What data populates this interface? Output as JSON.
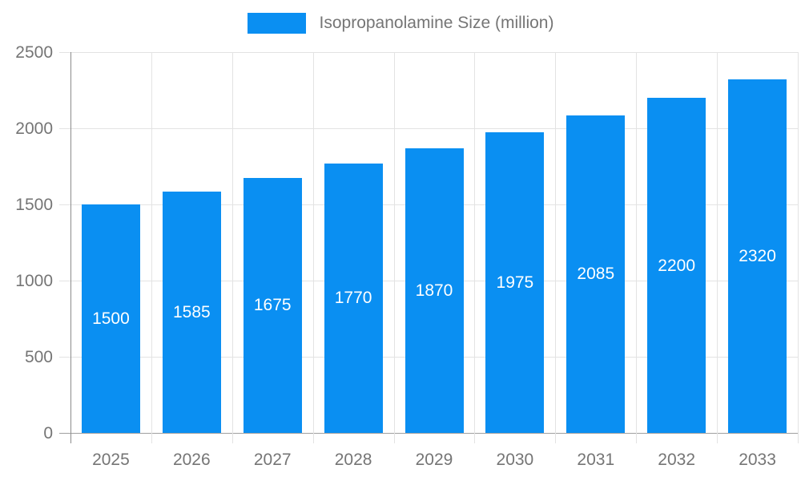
{
  "legend": {
    "label": "Isopropanolamine Size (million)"
  },
  "chart_data": {
    "type": "bar",
    "title": "Isopropanolamine Size (million)",
    "categories": [
      "2025",
      "2026",
      "2027",
      "2028",
      "2029",
      "2030",
      "2031",
      "2032",
      "2033"
    ],
    "values": [
      1500,
      1585,
      1675,
      1770,
      1870,
      1975,
      2085,
      2200,
      2320
    ],
    "xlabel": "",
    "ylabel": "",
    "ylim": [
      0,
      2500
    ],
    "yticks": [
      0,
      500,
      1000,
      1500,
      2000,
      2500
    ],
    "grid": true,
    "legend_position": "top",
    "bar_color": "#0a8ff2",
    "value_label_color": "#ffffff",
    "axis_label_color": "#757575",
    "gridline_color": "#e3e3e3",
    "axis_line_color": "#8c8c8c"
  }
}
